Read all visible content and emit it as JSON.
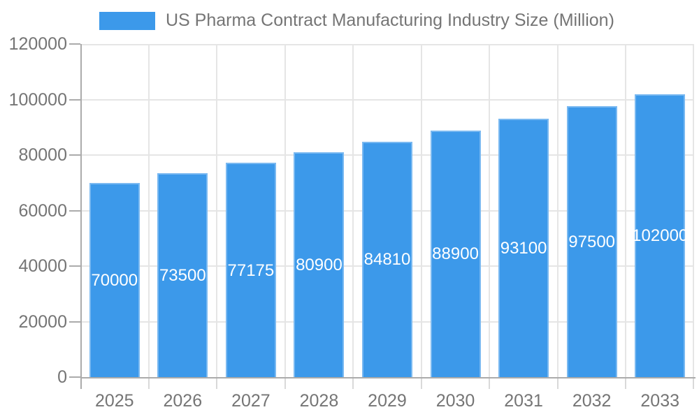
{
  "chart_data": {
    "type": "bar",
    "title": "US Pharma Contract Manufacturing Industry Size (Million)",
    "categories": [
      "2025",
      "2026",
      "2027",
      "2028",
      "2029",
      "2030",
      "2031",
      "2032",
      "2033"
    ],
    "values": [
      70000,
      73500,
      77175,
      80900,
      84810,
      88900,
      93100,
      97500,
      102000
    ],
    "bar_labels": [
      "70000",
      "73500",
      "77175",
      "80900",
      "84810",
      "88900",
      "93100",
      "97500",
      "102000"
    ],
    "xlabel": "",
    "ylabel": "",
    "ylim": [
      0,
      120000
    ],
    "ytick_step": 20000,
    "ytick_labels": [
      "0",
      "20000",
      "40000",
      "60000",
      "80000",
      "100000",
      "120000"
    ],
    "grid": true,
    "legend_position": "top",
    "value_label_placement": "inside-middle"
  },
  "legend": {
    "label": "US Pharma Contract Manufacturing Industry Size (Million)"
  },
  "colors": {
    "bar_fill": "#3c99ea",
    "bar_label_text": "#ffffff",
    "axis_line": "#ababab",
    "gridline": "#e5e5e5",
    "category_tick": "#d9d9d9",
    "axis_text": "#757575",
    "background": "#ffffff"
  }
}
